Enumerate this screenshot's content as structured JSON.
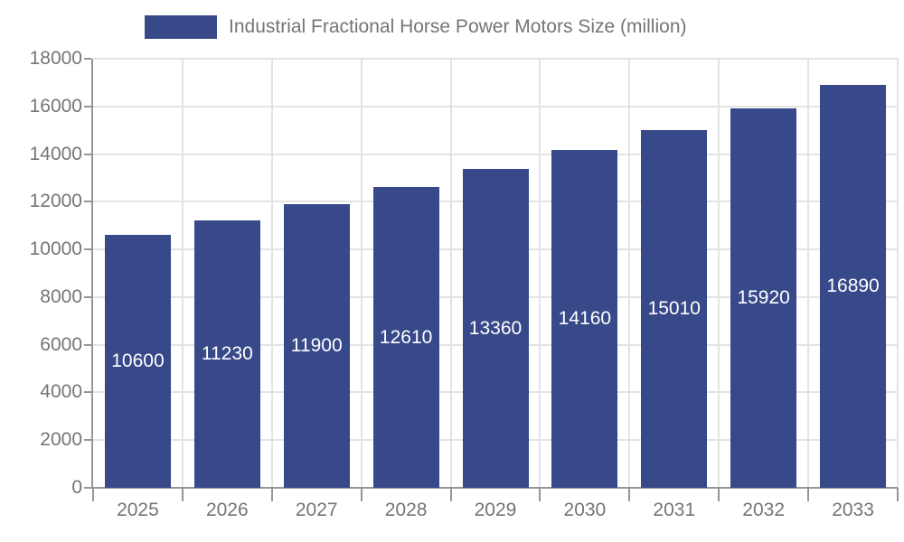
{
  "legend": {
    "title": "Industrial Fractional Horse Power Motors Size (million)"
  },
  "chart_data": {
    "type": "bar",
    "categories": [
      "2025",
      "2026",
      "2027",
      "2028",
      "2029",
      "2030",
      "2031",
      "2032",
      "2033"
    ],
    "values": [
      10600,
      11230,
      11900,
      12610,
      13360,
      14160,
      15010,
      15920,
      16890
    ],
    "title": "Industrial Fractional Horse Power Motors Size (million)",
    "xlabel": "",
    "ylabel": "",
    "ylim": [
      0,
      18000
    ],
    "ytick_interval": 2000,
    "ytick_labels": [
      "0",
      "2000",
      "4000",
      "6000",
      "8000",
      "10000",
      "12000",
      "14000",
      "16000",
      "18000"
    ],
    "grid": true,
    "legend_position": "top",
    "value_labels": "inside-center",
    "colors": {
      "bar": "#38498A",
      "bar_label": "#ffffff",
      "axis_text": "#757575",
      "axis_line": "#969696",
      "gridline": "#e3e3e3",
      "background": "#ffffff"
    }
  }
}
